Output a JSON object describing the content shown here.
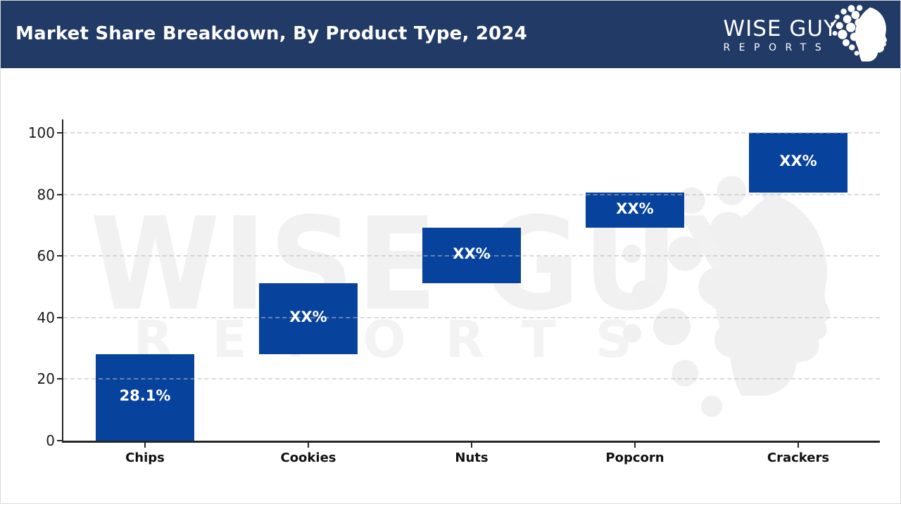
{
  "header": {
    "title": "Market Share Breakdown, By Product Type, 2024",
    "bg_color": "#213a66",
    "logo": {
      "wordmark": "WISE GUY",
      "subtext": "REPORTS"
    }
  },
  "watermark": {
    "line1": "WISE GUY",
    "line2": "REPORTS"
  },
  "chart_data": {
    "type": "bar",
    "subtype": "waterfall (floating stacked progression, cumulative to 100%)",
    "title": "Market Share Breakdown, By Product Type, 2024",
    "categories": [
      "Chips",
      "Cookies",
      "Nuts",
      "Popcorn",
      "Crackers"
    ],
    "bar_labels": [
      "28.1%",
      "XX%",
      "XX%",
      "XX%",
      "XX%"
    ],
    "cumulative_base": [
      0,
      28.1,
      51.2,
      69.2,
      80.6
    ],
    "cumulative_top": [
      28.1,
      51.2,
      69.2,
      80.6,
      100
    ],
    "segment_values": [
      28.1,
      23.1,
      18.0,
      11.4,
      19.4
    ],
    "xlabel": "",
    "ylabel": "",
    "ylim": [
      0,
      100
    ],
    "yticks": [
      0,
      20,
      40,
      60,
      80,
      100
    ],
    "grid": "horizontal dashed",
    "legend": "none",
    "bar_color": "#07429c",
    "bar_label_color": "#ffffff",
    "axis_color": "#262626",
    "grid_color": "#d8d8d8"
  }
}
